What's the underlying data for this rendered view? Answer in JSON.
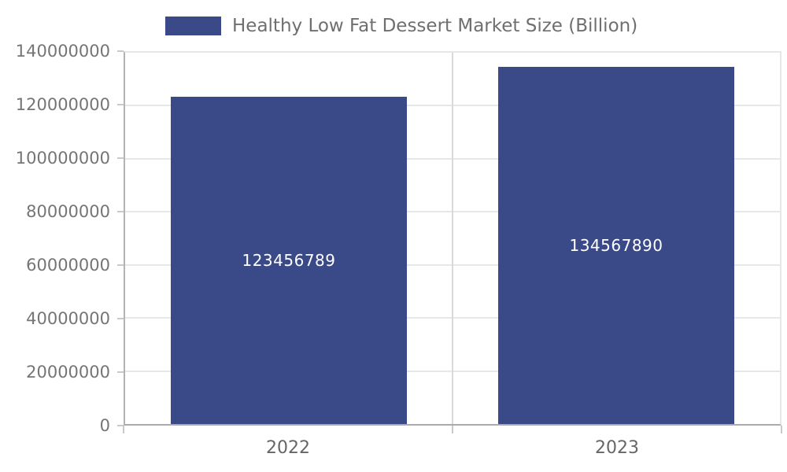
{
  "chart_data": {
    "type": "bar",
    "categories": [
      "2022",
      "2023"
    ],
    "series": [
      {
        "name": "Healthy Low Fat Dessert Market Size (Billion)",
        "values": [
          123456789,
          134567890
        ],
        "color": "#3A4A88"
      }
    ],
    "data_labels": [
      "123456789",
      "134567890"
    ],
    "data_label_color": "#ffffff",
    "yticks": [
      0,
      20000000,
      40000000,
      60000000,
      80000000,
      100000000,
      120000000,
      140000000
    ],
    "ytick_labels": [
      "0",
      "20000000",
      "40000000",
      "60000000",
      "80000000",
      "100000000",
      "120000000",
      "140000000"
    ],
    "ylim": [
      0,
      140000000
    ],
    "xlabel": "",
    "ylabel": "",
    "title": "",
    "legend_position": "top",
    "grid": true,
    "bar_width_fraction": 0.36
  },
  "colors": {
    "bar": "#3A4A88",
    "gridline": "#e7e7e7",
    "vertical_gridline": "#d9d9d9",
    "axis_spine": "#ababab",
    "tick": "#c9c9c9",
    "ytick_text": "#757575",
    "xtick_text": "#666666",
    "legend_text": "#6f6f6f"
  }
}
